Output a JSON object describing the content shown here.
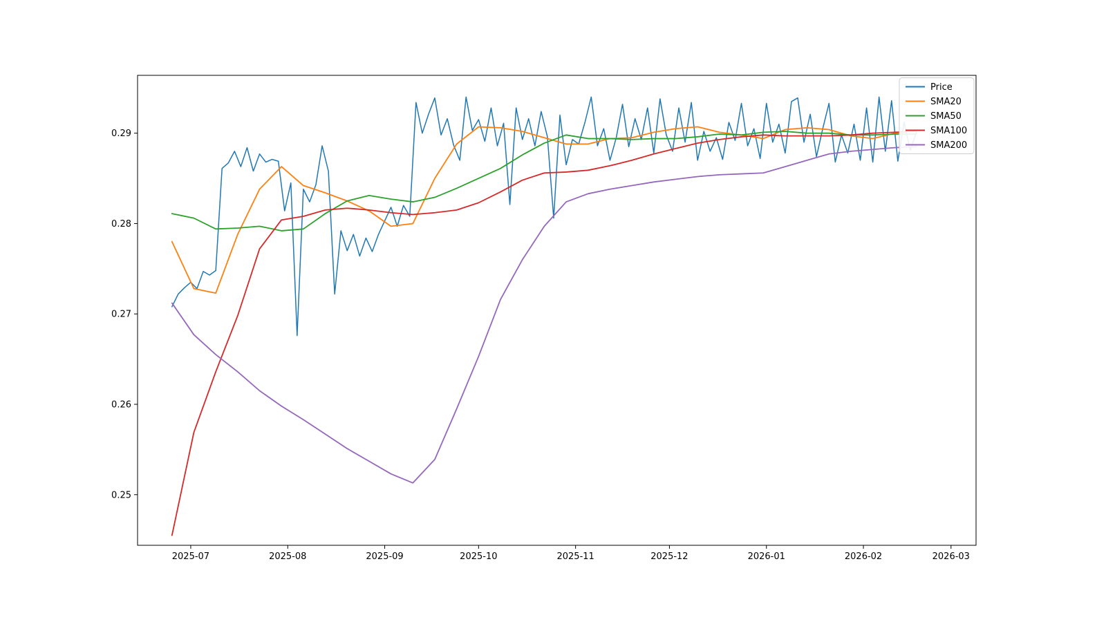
{
  "figure": {
    "background": "#ffffff",
    "spine_color": "#000000",
    "tick_label_color": "#000000"
  },
  "chart_data": {
    "type": "line",
    "title": "",
    "xlabel": "",
    "ylabel": "",
    "grid": false,
    "x_axis": {
      "lim": [
        "2025-06-14",
        "2026-03-09"
      ],
      "ticks": [
        {
          "date": "2025-07-01",
          "label": "2025-07"
        },
        {
          "date": "2025-08-01",
          "label": "2025-08"
        },
        {
          "date": "2025-09-01",
          "label": "2025-09"
        },
        {
          "date": "2025-10-01",
          "label": "2025-10"
        },
        {
          "date": "2025-11-01",
          "label": "2025-11"
        },
        {
          "date": "2025-12-01",
          "label": "2025-12"
        },
        {
          "date": "2026-01-01",
          "label": "2026-01"
        },
        {
          "date": "2026-02-01",
          "label": "2026-02"
        },
        {
          "date": "2026-03-01",
          "label": "2026-03"
        }
      ]
    },
    "y_axis": {
      "lim": [
        0.2444,
        0.2964
      ],
      "ticks": [
        0.25,
        0.26,
        0.27,
        0.28,
        0.29
      ],
      "tick_format_decimals": 2
    },
    "legend": {
      "position": "upper right",
      "entries": [
        "Price",
        "SMA20",
        "SMA50",
        "SMA100",
        "SMA200"
      ]
    },
    "x_arrays": {
      "price": [
        "2025-06-25",
        "2025-06-27",
        "2025-06-29",
        "2025-07-01",
        "2025-07-03",
        "2025-07-05",
        "2025-07-07",
        "2025-07-09",
        "2025-07-11",
        "2025-07-13",
        "2025-07-15",
        "2025-07-17",
        "2025-07-19",
        "2025-07-21",
        "2025-07-23",
        "2025-07-25",
        "2025-07-27",
        "2025-07-29",
        "2025-07-31",
        "2025-08-02",
        "2025-08-04",
        "2025-08-06",
        "2025-08-08",
        "2025-08-10",
        "2025-08-12",
        "2025-08-14",
        "2025-08-16",
        "2025-08-18",
        "2025-08-20",
        "2025-08-22",
        "2025-08-24",
        "2025-08-26",
        "2025-08-28",
        "2025-08-30",
        "2025-09-01",
        "2025-09-03",
        "2025-09-05",
        "2025-09-07",
        "2025-09-09",
        "2025-09-11",
        "2025-09-13",
        "2025-09-15",
        "2025-09-17",
        "2025-09-19",
        "2025-09-21",
        "2025-09-23",
        "2025-09-25",
        "2025-09-27",
        "2025-09-29",
        "2025-10-01",
        "2025-10-03",
        "2025-10-05",
        "2025-10-07",
        "2025-10-09",
        "2025-10-11",
        "2025-10-13",
        "2025-10-15",
        "2025-10-17",
        "2025-10-19",
        "2025-10-21",
        "2025-10-23",
        "2025-10-25",
        "2025-10-27",
        "2025-10-29",
        "2025-10-31",
        "2025-11-02",
        "2025-11-04",
        "2025-11-06",
        "2025-11-08",
        "2025-11-10",
        "2025-11-12",
        "2025-11-14",
        "2025-11-16",
        "2025-11-18",
        "2025-11-20",
        "2025-11-22",
        "2025-11-24",
        "2025-11-26",
        "2025-11-28",
        "2025-11-30",
        "2025-12-02",
        "2025-12-04",
        "2025-12-06",
        "2025-12-08",
        "2025-12-10",
        "2025-12-12",
        "2025-12-14",
        "2025-12-16",
        "2025-12-18",
        "2025-12-20",
        "2025-12-22",
        "2025-12-24",
        "2025-12-26",
        "2025-12-28",
        "2025-12-30",
        "2026-01-01",
        "2026-01-03",
        "2026-01-05",
        "2026-01-07",
        "2026-01-09",
        "2026-01-11",
        "2026-01-13",
        "2026-01-15",
        "2026-01-17",
        "2026-01-19",
        "2026-01-21",
        "2026-01-23",
        "2026-01-25",
        "2026-01-27",
        "2026-01-29",
        "2026-01-31",
        "2026-02-02",
        "2026-02-04",
        "2026-02-06",
        "2026-02-08",
        "2026-02-10",
        "2026-02-12",
        "2026-02-14",
        "2026-02-16",
        "2026-02-18"
      ],
      "weekly": [
        "2025-06-25",
        "2025-07-02",
        "2025-07-09",
        "2025-07-16",
        "2025-07-23",
        "2025-07-30",
        "2025-08-06",
        "2025-08-13",
        "2025-08-20",
        "2025-08-27",
        "2025-09-03",
        "2025-09-10",
        "2025-09-17",
        "2025-09-24",
        "2025-10-01",
        "2025-10-08",
        "2025-10-15",
        "2025-10-22",
        "2025-10-29",
        "2025-11-05",
        "2025-11-12",
        "2025-11-19",
        "2025-11-26",
        "2025-12-03",
        "2025-12-10",
        "2025-12-17",
        "2025-12-24",
        "2025-12-31",
        "2026-01-07",
        "2026-01-14",
        "2026-01-21",
        "2026-01-28",
        "2026-02-04",
        "2026-02-11",
        "2026-02-18"
      ]
    },
    "series": [
      {
        "name": "Price",
        "color": "#1f77b4",
        "line_width": 1.5,
        "x_key": "price",
        "values": [
          0.2708,
          0.2722,
          0.2729,
          0.2735,
          0.2728,
          0.2747,
          0.2743,
          0.2748,
          0.2861,
          0.2867,
          0.288,
          0.2863,
          0.2884,
          0.2858,
          0.2877,
          0.2868,
          0.2871,
          0.2869,
          0.2814,
          0.2845,
          0.2676,
          0.2838,
          0.2824,
          0.2843,
          0.2886,
          0.2858,
          0.2722,
          0.2792,
          0.277,
          0.2788,
          0.2764,
          0.2784,
          0.2769,
          0.2788,
          0.2803,
          0.2818,
          0.2797,
          0.282,
          0.2808,
          0.2934,
          0.29,
          0.2921,
          0.2939,
          0.2898,
          0.2916,
          0.2887,
          0.287,
          0.294,
          0.2903,
          0.2915,
          0.2891,
          0.2928,
          0.2886,
          0.2911,
          0.2821,
          0.2928,
          0.2893,
          0.2916,
          0.2886,
          0.2924,
          0.2896,
          0.2806,
          0.292,
          0.2865,
          0.2893,
          0.2888,
          0.2912,
          0.294,
          0.2886,
          0.2905,
          0.287,
          0.2895,
          0.2932,
          0.2885,
          0.2916,
          0.2893,
          0.2928,
          0.2878,
          0.2938,
          0.2898,
          0.288,
          0.2928,
          0.289,
          0.2934,
          0.287,
          0.2902,
          0.288,
          0.2895,
          0.2871,
          0.2912,
          0.2892,
          0.2933,
          0.2886,
          0.2905,
          0.2872,
          0.2933,
          0.289,
          0.291,
          0.2878,
          0.2935,
          0.2939,
          0.289,
          0.2921,
          0.2874,
          0.2905,
          0.2933,
          0.2868,
          0.2898,
          0.2878,
          0.291,
          0.287,
          0.2928,
          0.2868,
          0.294,
          0.288,
          0.2936,
          0.2869,
          0.2912,
          0.2881,
          0.2902
        ]
      },
      {
        "name": "SMA20",
        "color": "#ff7f0e",
        "line_width": 1.8,
        "x_key": "weekly",
        "values": [
          0.278,
          0.2728,
          0.2723,
          0.2788,
          0.2838,
          0.2863,
          0.2842,
          0.2834,
          0.2825,
          0.2814,
          0.2797,
          0.28,
          0.285,
          0.2888,
          0.2907,
          0.2906,
          0.2902,
          0.2895,
          0.2888,
          0.2888,
          0.2894,
          0.2895,
          0.2901,
          0.2905,
          0.2907,
          0.2901,
          0.2898,
          0.2894,
          0.2904,
          0.2906,
          0.2904,
          0.2897,
          0.2894,
          0.29,
          0.2903
        ]
      },
      {
        "name": "SMA50",
        "color": "#2ca02c",
        "line_width": 1.8,
        "x_key": "weekly",
        "values": [
          0.2811,
          0.2806,
          0.2794,
          0.2795,
          0.2797,
          0.2792,
          0.2794,
          0.2811,
          0.2825,
          0.2831,
          0.2827,
          0.2824,
          0.2829,
          0.2839,
          0.285,
          0.2861,
          0.2876,
          0.2889,
          0.2898,
          0.2894,
          0.2894,
          0.2893,
          0.2894,
          0.2894,
          0.2896,
          0.2899,
          0.2898,
          0.2901,
          0.2902,
          0.29,
          0.29,
          0.2898,
          0.2898,
          0.2899,
          0.2899
        ]
      },
      {
        "name": "SMA100",
        "color": "#d62728",
        "line_width": 1.8,
        "x_key": "weekly",
        "values": [
          0.2455,
          0.2569,
          0.2636,
          0.2698,
          0.2772,
          0.2804,
          0.2808,
          0.2815,
          0.2817,
          0.2815,
          0.2812,
          0.281,
          0.2812,
          0.2815,
          0.2823,
          0.2835,
          0.2848,
          0.2856,
          0.2857,
          0.2859,
          0.2864,
          0.287,
          0.2877,
          0.2883,
          0.2889,
          0.2893,
          0.2896,
          0.2898,
          0.2897,
          0.2897,
          0.2897,
          0.2898,
          0.29,
          0.2901,
          0.2902
        ]
      },
      {
        "name": "SMA200",
        "color": "#9467bd",
        "line_width": 1.8,
        "x_key": "weekly",
        "values": [
          0.2712,
          0.2677,
          0.2655,
          0.2636,
          0.2615,
          0.2598,
          0.2583,
          0.2567,
          0.2551,
          0.2537,
          0.2523,
          0.2513,
          0.2539,
          0.2595,
          0.2653,
          0.2716,
          0.276,
          0.2797,
          0.2824,
          0.2833,
          0.2838,
          0.2842,
          0.2846,
          0.2849,
          0.2852,
          0.2854,
          0.2855,
          0.2856,
          0.2863,
          0.287,
          0.2877,
          0.288,
          0.2882,
          0.2884,
          0.2885
        ]
      }
    ]
  }
}
